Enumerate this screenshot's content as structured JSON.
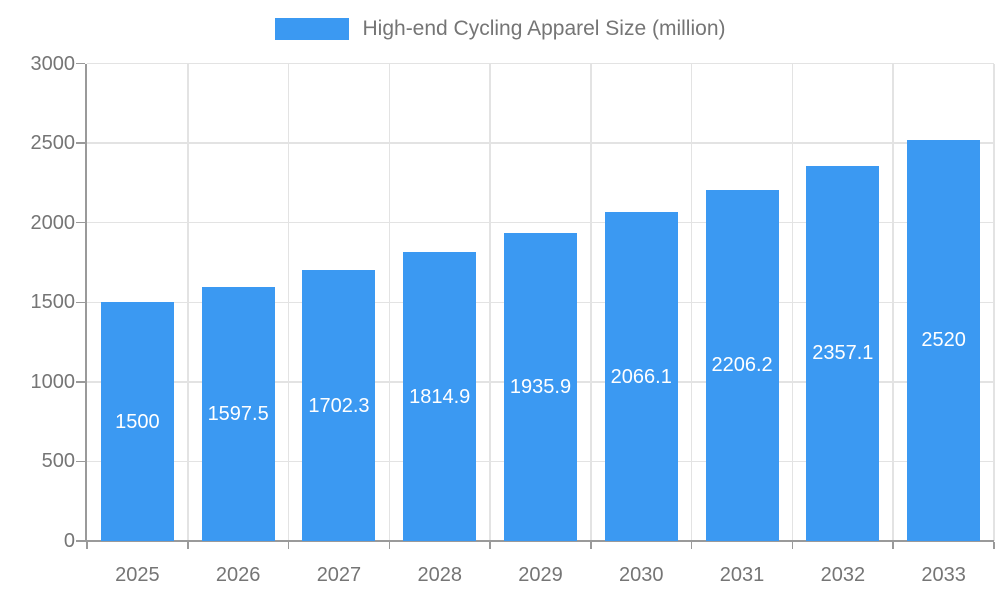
{
  "chart_data": {
    "type": "bar",
    "title": "High-end Cycling Apparel Size (million)",
    "categories": [
      "2025",
      "2026",
      "2027",
      "2028",
      "2029",
      "2030",
      "2031",
      "2032",
      "2033"
    ],
    "values": [
      1500,
      1597.5,
      1702.3,
      1814.9,
      1935.9,
      2066.1,
      2206.2,
      2357.1,
      2520
    ],
    "bar_labels": [
      "1500",
      "1597.5",
      "1702.3",
      "1814.9",
      "1935.9",
      "2066.1",
      "2206.2",
      "2357.1",
      "2520"
    ],
    "xlabel": "",
    "ylabel": "",
    "ylim": [
      0,
      3000
    ],
    "yticks": [
      0,
      500,
      1000,
      1500,
      2000,
      2500,
      3000
    ],
    "grid": true,
    "legend_position": "top-center",
    "bar_label_position": "inside-center",
    "colors": {
      "bar": "#3B99F2",
      "grid": "#e3e3e3",
      "axis": "#9a9a9a",
      "text": "#757575",
      "bar_label": "#ffffff",
      "background": "#ffffff"
    }
  }
}
